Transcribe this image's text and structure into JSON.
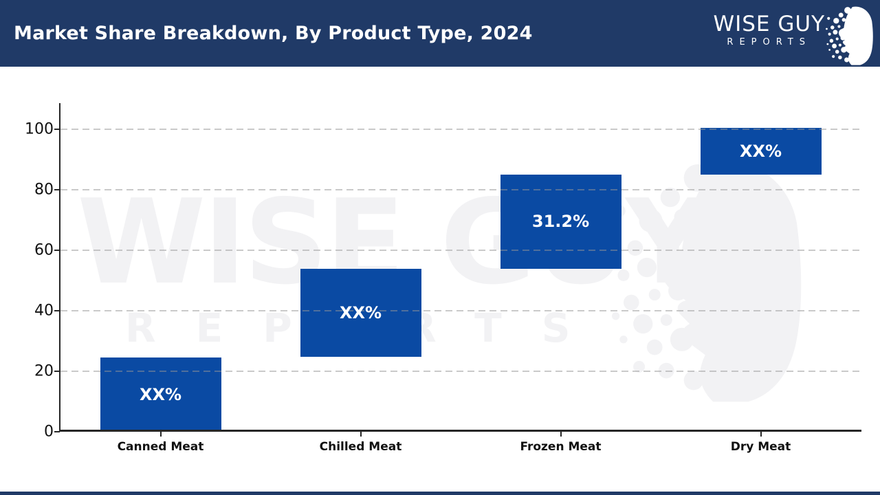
{
  "header": {
    "title": "Market Share Breakdown, By Product Type, 2024",
    "logo": {
      "line1": "WISE GUY",
      "line2": "REPORTS"
    }
  },
  "watermark": {
    "line1": "WISE GUY",
    "line2": "REPORTS"
  },
  "chart_data": {
    "type": "bar",
    "subtype": "floating-segment-waterfall",
    "title": "Market Share Breakdown, By Product Type, 2024",
    "categories": [
      "Canned Meat",
      "Chilled Meat",
      "Frozen Meat",
      "Dry Meat"
    ],
    "bars": [
      {
        "category": "Canned Meat",
        "from": 0,
        "to": 24.5,
        "label": "XX%"
      },
      {
        "category": "Chilled Meat",
        "from": 24.8,
        "to": 53.9,
        "label": "XX%"
      },
      {
        "category": "Frozen Meat",
        "from": 53.9,
        "to": 85.1,
        "label": "31.2%"
      },
      {
        "category": "Dry Meat",
        "from": 85.1,
        "to": 100.5,
        "label": "XX%"
      }
    ],
    "xlabel": "",
    "ylabel": "",
    "ylim": [
      0,
      105
    ],
    "yticks": [
      0,
      20,
      40,
      60,
      80,
      100
    ],
    "grid": "horizontal-dashed",
    "legend": "none",
    "colors": {
      "bar": "#0a4aa3",
      "bar_label_text": "#ffffff",
      "axis": "#262626",
      "grid": "#d3d3d3",
      "header_bg": "#203a67",
      "title_text": "#ffffff",
      "watermark": "#f2f2f4"
    }
  }
}
